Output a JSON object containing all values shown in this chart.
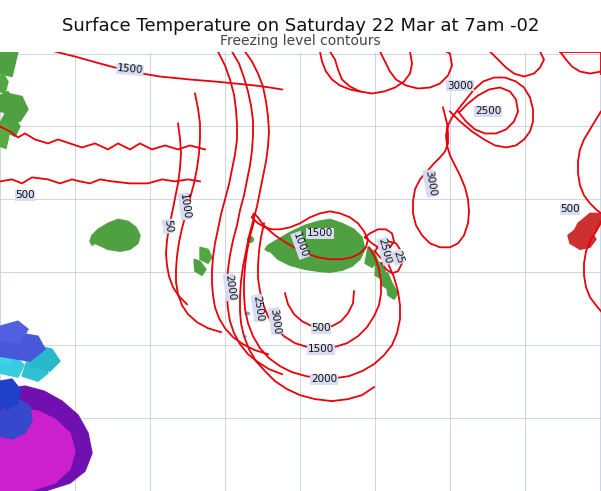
{
  "title": "Surface Temperature on Saturday 22 Mar at 7am -02",
  "subtitle": "Freezing level contours",
  "title_fontsize": 13,
  "subtitle_fontsize": 10,
  "bg_white": "#ffffff",
  "map_bg": "#d8dcf0",
  "grid_color": "#bcc4dc",
  "contour_color": "#e8000a",
  "clw": 1.3,
  "label_fs": 7.5,
  "figsize": [
    6.01,
    4.91
  ],
  "dpi": 100
}
